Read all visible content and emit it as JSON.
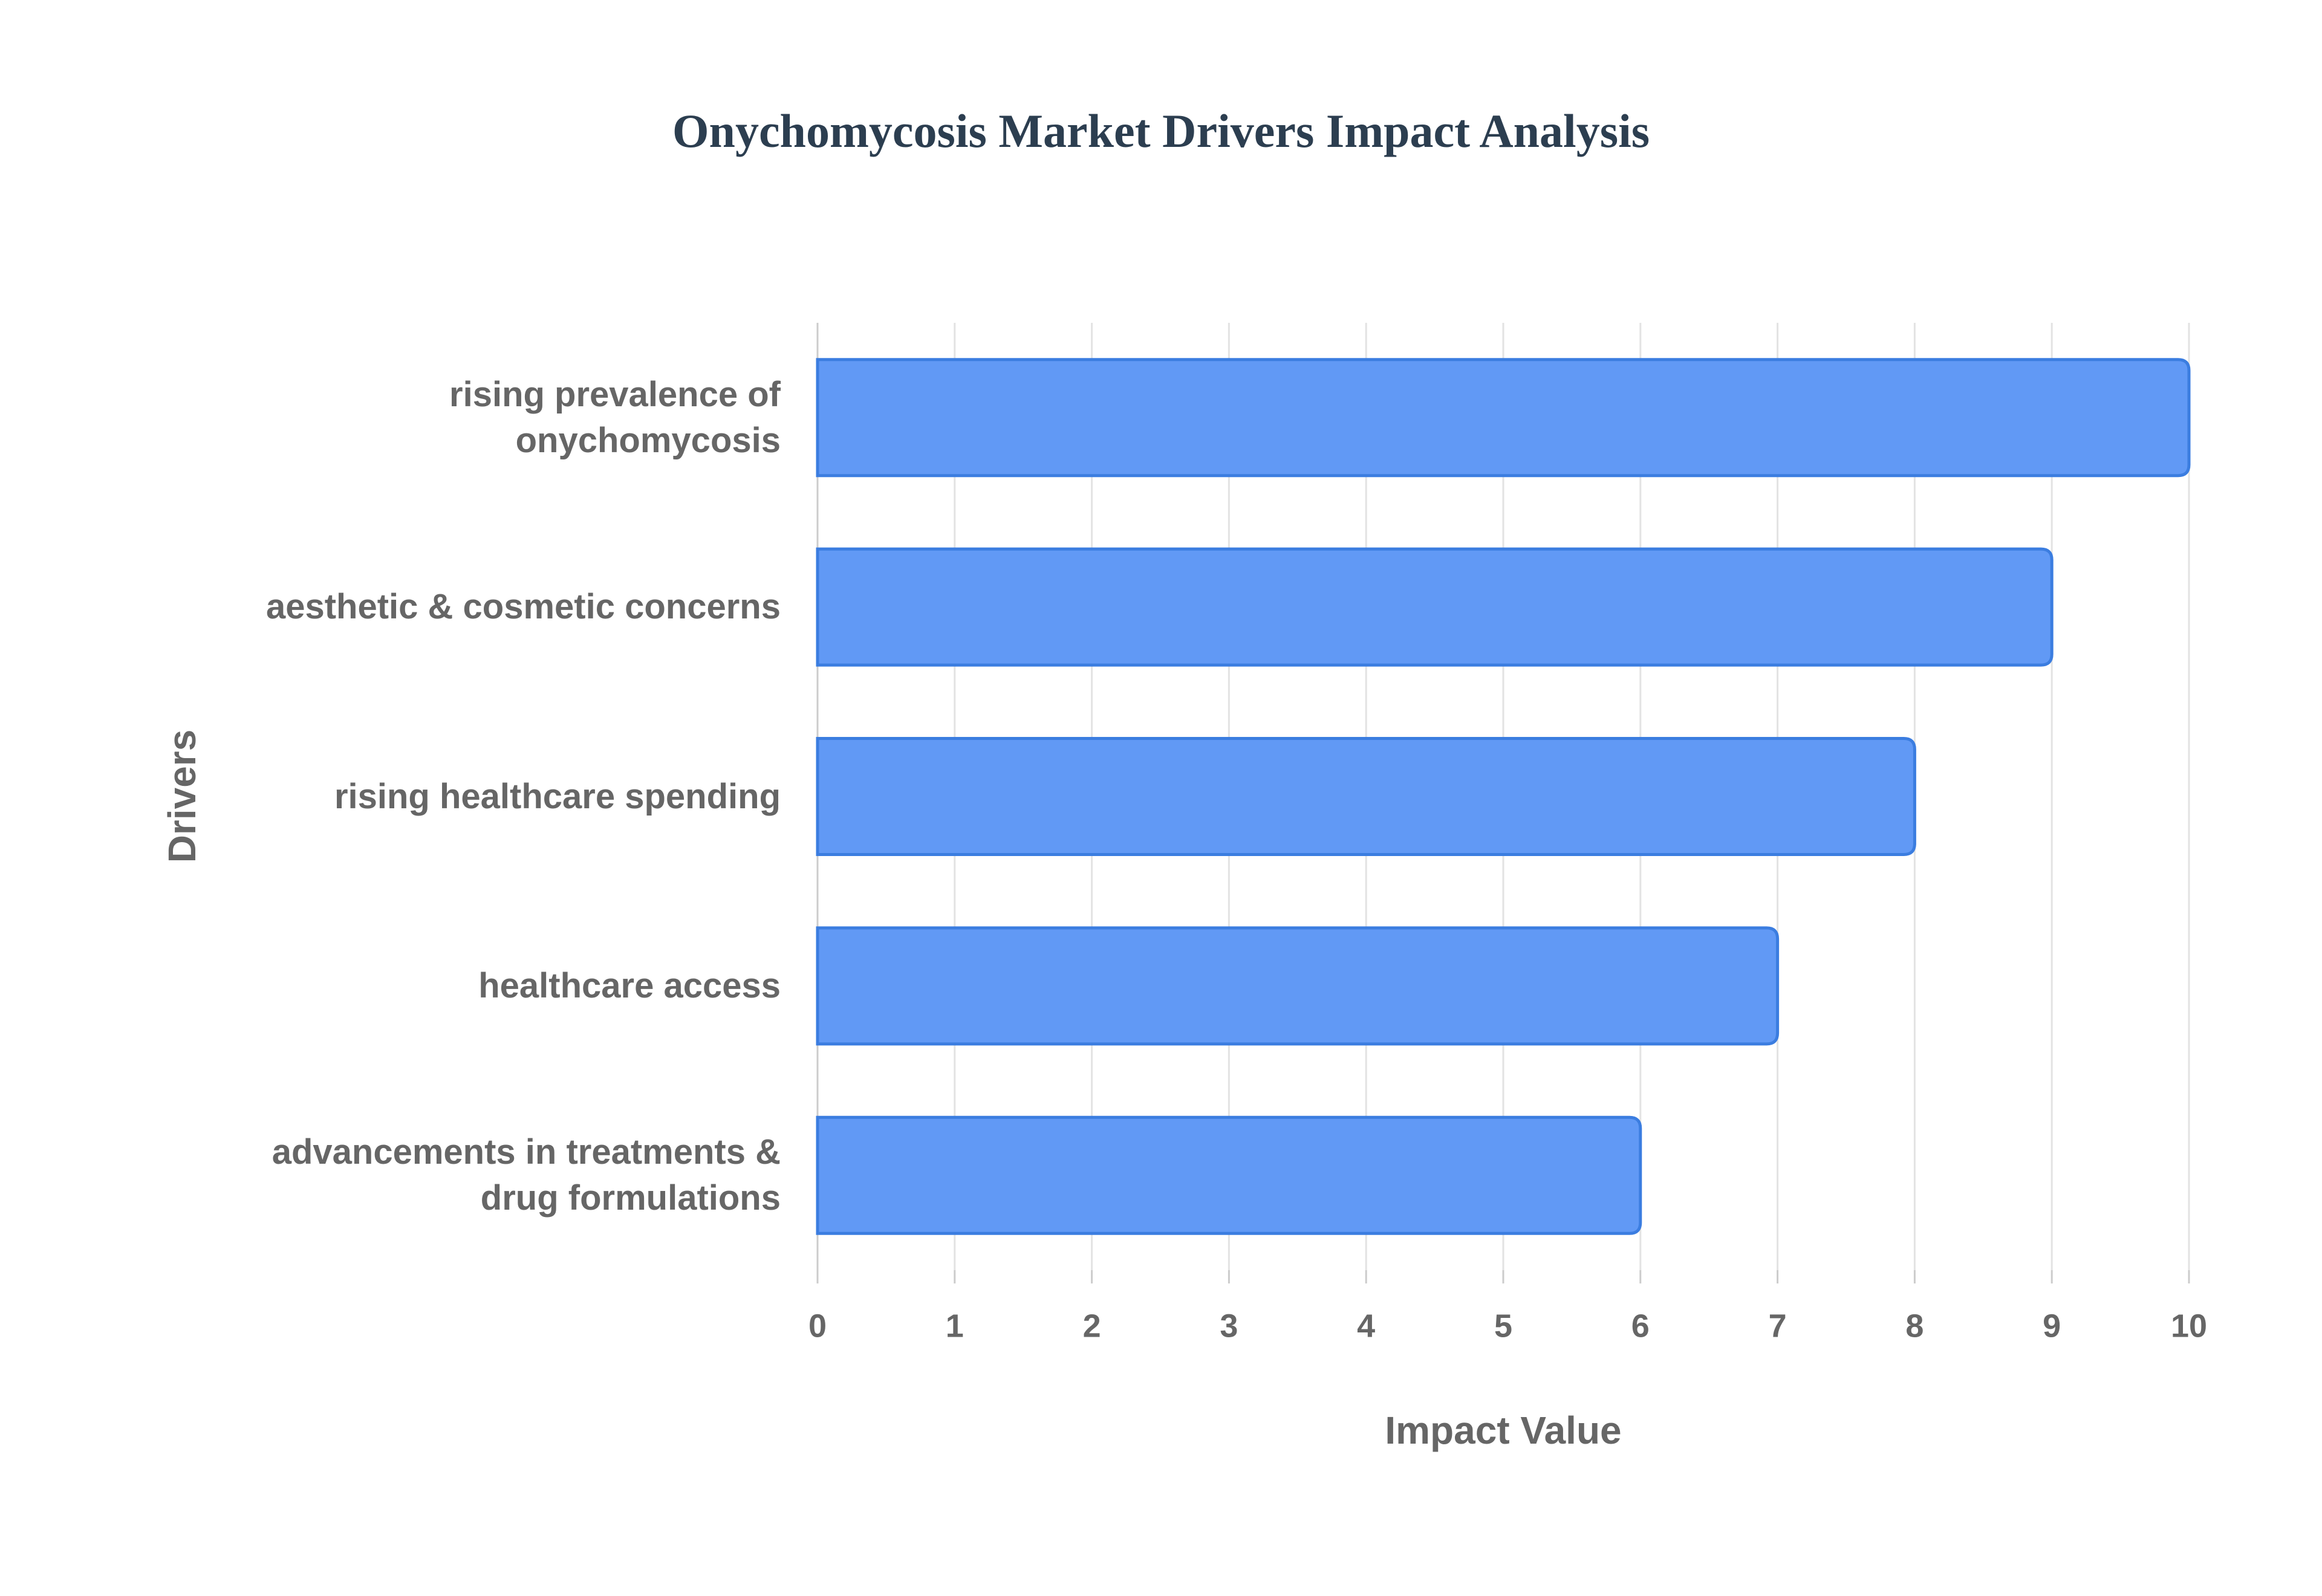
{
  "chart_data": {
    "type": "barh",
    "title": "Onychomycosis Market Drivers Impact Analysis",
    "x_label": "Impact Value",
    "y_label": "Drivers",
    "categories": [
      "rising prevalence of onychomycosis",
      "aesthetic & cosmetic concerns",
      "rising healthcare spending",
      "healthcare access",
      "advancements in treatments & drug formulations"
    ],
    "values": [
      10,
      9,
      8,
      7,
      6
    ],
    "color": "#6199f5",
    "xlim": [
      0,
      10
    ],
    "xticks": [
      0,
      1,
      2,
      3,
      4,
      5,
      6,
      7,
      8,
      9,
      10
    ],
    "grid": true
  }
}
